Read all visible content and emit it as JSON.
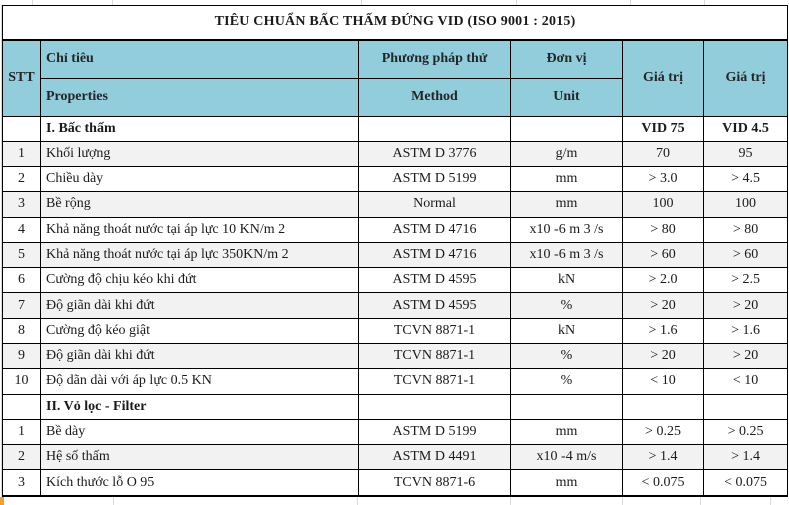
{
  "title": "TIÊU CHUẨN BẤC THẤM ĐỨNG VID (ISO 9001 : 2015)",
  "header": {
    "stt": "STT",
    "criteria_vi": "Chỉ tiêu",
    "criteria_en": "Properties",
    "method_vi": "Phương pháp thử",
    "method_en": "Method",
    "unit_vi": "Đơn vị",
    "unit_en": "Unit",
    "value1": "Giá trị",
    "value2": "Giá trị"
  },
  "colors": {
    "header_bg": "#92cddc",
    "border": "#000000",
    "alt_row_bg": "#f2f2f2",
    "corner_marker": "#efa02f",
    "faint_grid": "#d9d9d9"
  },
  "sections": [
    {
      "label": "I. Bấc thấm",
      "method": "",
      "unit": "",
      "value1": "VID 75",
      "value2": "VID 4.5",
      "rows": [
        {
          "stt": "1",
          "name": "Khối lượng",
          "method": "ASTM D 3776",
          "unit": "g/m",
          "value1": "70",
          "value2": "95"
        },
        {
          "stt": "2",
          "name": "Chiều dày",
          "method": "ASTM D 5199",
          "unit": "mm",
          "value1": "> 3.0",
          "value2": "> 4.5"
        },
        {
          "stt": "3",
          "name": "Bề rộng",
          "method": "Normal",
          "unit": "mm",
          "value1": "100",
          "value2": "100"
        },
        {
          "stt": "4",
          "name": "Khả năng thoát nước tại áp lực 10 KN/m 2",
          "method": "ASTM D 4716",
          "unit": "x10 -6 m 3 /s",
          "value1": "> 80",
          "value2": "> 80"
        },
        {
          "stt": "5",
          "name": "Khả năng thoát nước tại áp lực 350KN/m 2",
          "method": "ASTM D 4716",
          "unit": "x10 -6 m 3 /s",
          "value1": "> 60",
          "value2": "> 60"
        },
        {
          "stt": "6",
          "name": "Cường độ chịu kéo khi đứt",
          "method": "ASTM D 4595",
          "unit": "kN",
          "value1": "> 2.0",
          "value2": "> 2.5"
        },
        {
          "stt": "7",
          "name": "Độ giãn dài khi đứt",
          "method": "ASTM D 4595",
          "unit": "%",
          "value1": "> 20",
          "value2": "> 20"
        },
        {
          "stt": "8",
          "name": "Cường độ kéo giật",
          "method": "TCVN 8871-1",
          "unit": "kN",
          "value1": "> 1.6",
          "value2": "> 1.6"
        },
        {
          "stt": "9",
          "name": "Độ giãn dài khi đứt",
          "method": "TCVN 8871-1",
          "unit": "%",
          "value1": "> 20",
          "value2": "> 20"
        },
        {
          "stt": "10",
          "name": "Độ dãn dài với áp lực 0.5 KN",
          "method": "TCVN 8871-1",
          "unit": "%",
          "value1": "< 10",
          "value2": "< 10"
        }
      ]
    },
    {
      "label": "II. Vỏ lọc - Filter",
      "method": "",
      "unit": "",
      "value1": "",
      "value2": "",
      "rows": [
        {
          "stt": "1",
          "name": "Bề dày",
          "method": "ASTM D 5199",
          "unit": "mm",
          "value1": "> 0.25",
          "value2": "> 0.25"
        },
        {
          "stt": "2",
          "name": "Hệ số thấm",
          "method": "ASTM D 4491",
          "unit": "x10 -4 m/s",
          "value1": "> 1.4",
          "value2": "> 1.4"
        },
        {
          "stt": "3",
          "name": "Kích thước lỗ O 95",
          "method": "TCVN 8871-6",
          "unit": "mm",
          "value1": "< 0.075",
          "value2": "< 0.075"
        }
      ]
    }
  ]
}
